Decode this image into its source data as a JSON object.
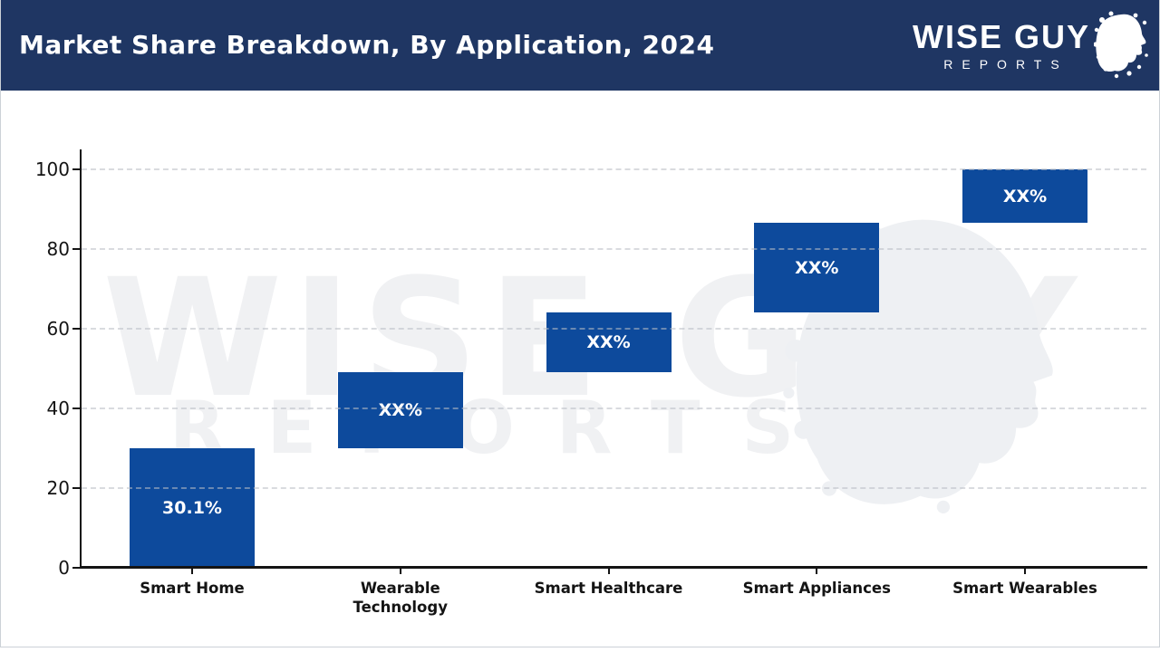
{
  "header": {
    "title": "Market Share Breakdown, By Application, 2024",
    "logo": {
      "line1": "WISE GUY",
      "line2": "REPORTS",
      "icon": "dotted-head-profile"
    }
  },
  "watermark": {
    "line1": "WISE GUY",
    "line2": "REPORTS",
    "icon": "dotted-head-profile"
  },
  "colors": {
    "header_bg": "#1f3663",
    "bar": "#0d4a9c",
    "grid": "#c9cdd2",
    "axis": "#141414",
    "bar_label_text": "#ffffff",
    "title_text": "#ffffff",
    "watermark": "#f0f1f3"
  },
  "chart_data": {
    "type": "bar",
    "subtype": "floating-waterfall",
    "title": "Market Share Breakdown, By Application, 2024",
    "xlabel": "",
    "ylabel": "",
    "categories": [
      "Smart Home",
      "Wearable Technology",
      "Smart Healthcare",
      "Smart Appliances",
      "Smart Wearables"
    ],
    "bars": [
      {
        "category": "Smart Home",
        "from": 0,
        "to": 30.1,
        "label": "30.1%"
      },
      {
        "category": "Wearable Technology",
        "from": 30.1,
        "to": 49,
        "label": "XX%"
      },
      {
        "category": "Smart Healthcare",
        "from": 49,
        "to": 64,
        "label": "XX%"
      },
      {
        "category": "Smart Appliances",
        "from": 64,
        "to": 86.5,
        "label": "XX%"
      },
      {
        "category": "Smart Wearables",
        "from": 86.5,
        "to": 100,
        "label": "XX%"
      }
    ],
    "y_ticks": [
      0,
      20,
      40,
      60,
      80,
      100
    ],
    "ylim": [
      0,
      105
    ],
    "grid": "horizontal-dashed",
    "legend": false
  }
}
